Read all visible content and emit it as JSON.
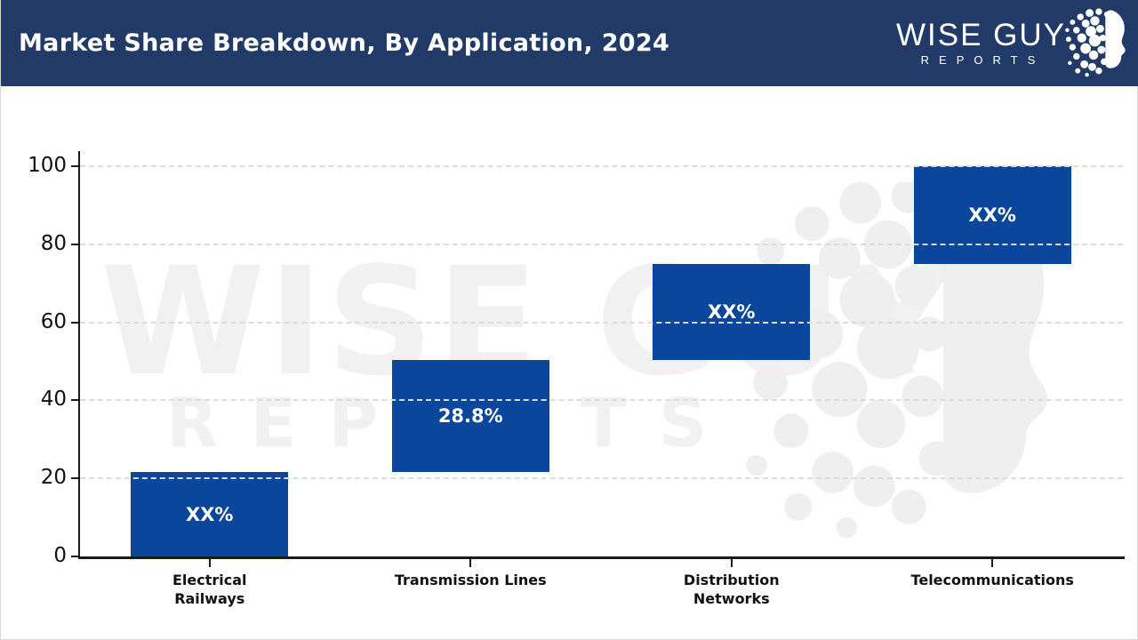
{
  "header": {
    "title": "Market Share Breakdown, By Application, 2024",
    "logo": {
      "name": "WISE GUY",
      "subname": "REPORTS",
      "icon": "wiseguy-dotted-face-icon"
    }
  },
  "watermark": {
    "line1": "WISE GUY",
    "line2": "REPORTS"
  },
  "colors": {
    "header_bg": "#213a67",
    "bar_fill": "#0a479c",
    "grid": "#dcdcdc",
    "axis": "#1a1a1a",
    "watermark": "#f1f1f1",
    "page_border": "#d9d9d9"
  },
  "chart_data": {
    "type": "bar",
    "subtype": "floating-cumulative-segments",
    "title": "Market Share Breakdown, By Application, 2024",
    "xlabel": "",
    "ylabel": "",
    "categories": [
      "Electrical\nRailways",
      "Transmission Lines",
      "Distribution\nNetworks",
      "Telecommunications"
    ],
    "segments": [
      {
        "category": "Electrical Railways",
        "from": 0,
        "to": 21.6,
        "value_label": "XX%"
      },
      {
        "category": "Transmission Lines",
        "from": 21.6,
        "to": 50.4,
        "value_label": "28.8%"
      },
      {
        "category": "Distribution Networks",
        "from": 50.4,
        "to": 75.0,
        "value_label": "XX%"
      },
      {
        "category": "Telecommunications",
        "from": 75.0,
        "to": 100.0,
        "value_label": "XX%"
      }
    ],
    "y_ticks": [
      0,
      20,
      40,
      60,
      80,
      100
    ],
    "ylim": [
      0,
      105
    ],
    "grid": "horizontal-dashed",
    "grid_above_bars": true,
    "legend": "none"
  }
}
